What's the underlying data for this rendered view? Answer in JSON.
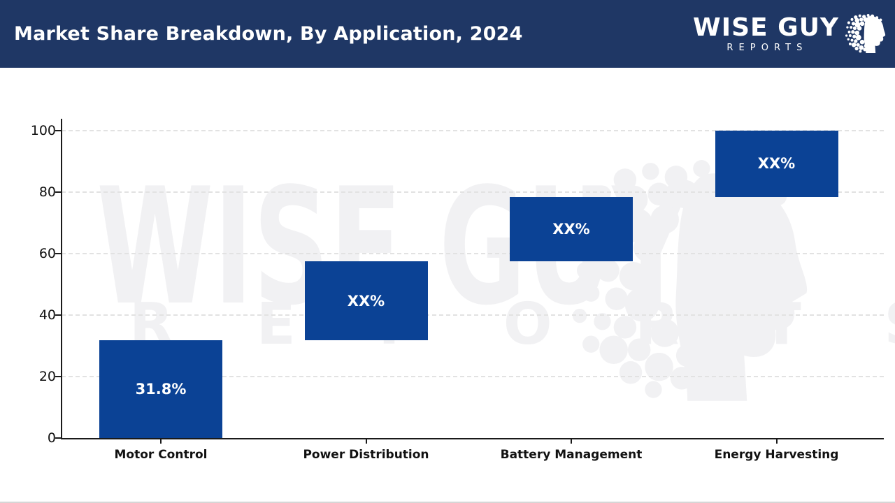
{
  "header": {
    "title": "Market Share Breakdown, By Application, 2024",
    "logo": {
      "line1": "WISE GUY",
      "line2": "REPORTS"
    }
  },
  "watermark": {
    "line1": "WISE GUY",
    "line2": "R E P O R T S"
  },
  "colors": {
    "header_bg": "#1F3765",
    "bar": "#0B4295",
    "bar_label": "#FFFFFF",
    "watermark": "#F1F1F3",
    "gridline": "#E2E2E2",
    "axis": "#1A1A1A",
    "bottom_line": "#D6D6D6"
  },
  "chart_data": {
    "type": "bar",
    "subtype": "waterfall",
    "title": "Market Share Breakdown, By Application, 2024",
    "categories": [
      "Motor Control",
      "Power Distribution",
      "Battery Management",
      "Energy Harvesting"
    ],
    "segments": [
      {
        "category": "Motor Control",
        "start": 0,
        "end": 31.8,
        "label": "31.8%"
      },
      {
        "category": "Power Distribution",
        "start": 31.8,
        "end": 57.5,
        "label": "XX%"
      },
      {
        "category": "Battery Management",
        "start": 57.5,
        "end": 78.5,
        "label": "XX%"
      },
      {
        "category": "Energy Harvesting",
        "start": 78.5,
        "end": 100,
        "label": "XX%"
      }
    ],
    "xlabel": "",
    "ylabel": "",
    "ylim": [
      0,
      100
    ],
    "yticks": [
      0,
      20,
      40,
      60,
      80,
      100
    ],
    "grid": "horizontal-dashed",
    "legend": "none"
  }
}
